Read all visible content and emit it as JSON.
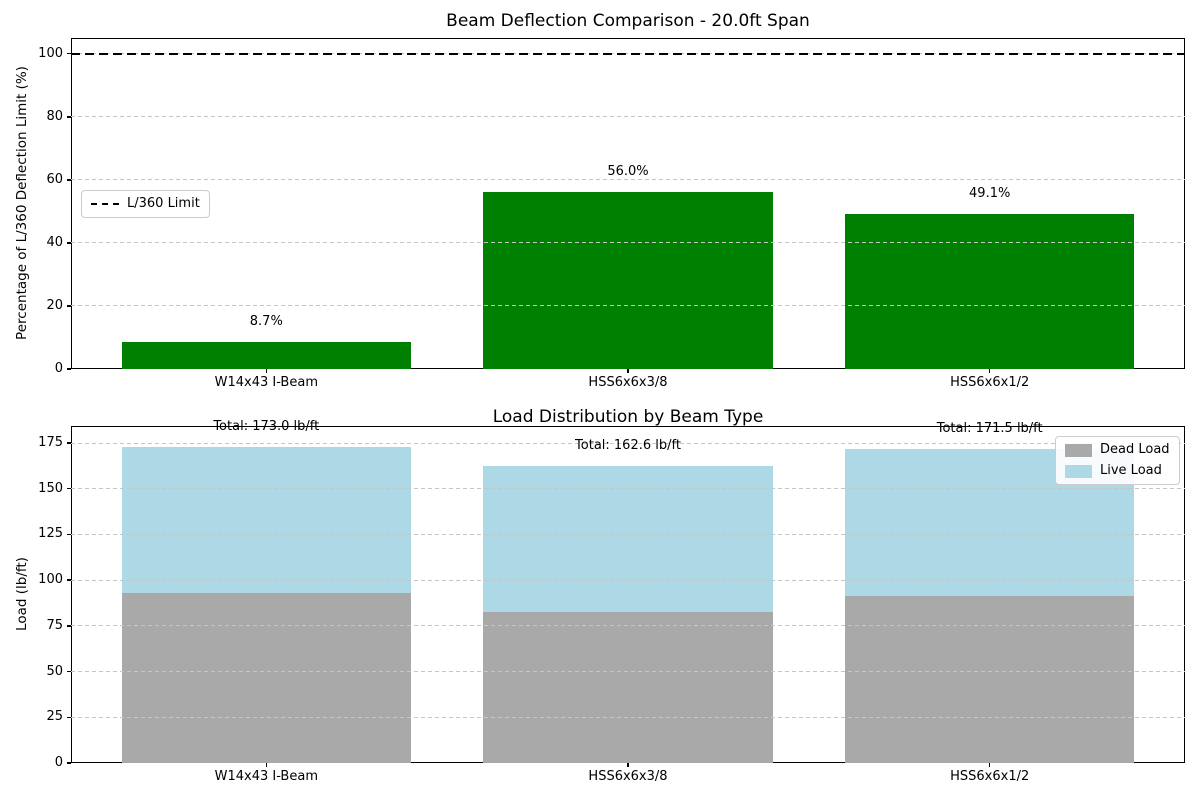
{
  "figure": {
    "background": "#ffffff"
  },
  "chart_data": [
    {
      "type": "bar",
      "title": "Beam Deflection Comparison - 20.0ft Span",
      "ylabel": "Percentage of L/360 Deflection Limit (%)",
      "xlabel": "",
      "categories": [
        "W14x43 I-Beam",
        "HSS6x6x3/8",
        "HSS6x6x1/2"
      ],
      "values": [
        8.7,
        56.0,
        49.1
      ],
      "bar_labels": [
        "8.7%",
        "56.0%",
        "49.1%"
      ],
      "bar_color": "#008000",
      "ylim": [
        0,
        105
      ],
      "yticks": [
        0,
        20,
        40,
        60,
        80,
        100
      ],
      "grid": true,
      "grid_style": "dashed",
      "limit_line": {
        "value": 100,
        "color": "#000000",
        "style": "dashed",
        "label": "L/360 Limit"
      },
      "legend": {
        "position": "center-left",
        "items": [
          {
            "label": "L/360 Limit",
            "swatch": "dashed-line",
            "color": "#000000"
          }
        ]
      }
    },
    {
      "type": "stacked-bar",
      "title": "Load Distribution by Beam Type",
      "ylabel": "Load (lb/ft)",
      "xlabel": "",
      "categories": [
        "W14x43 I-Beam",
        "HSS6x6x3/8",
        "HSS6x6x1/2"
      ],
      "series": [
        {
          "name": "Dead Load",
          "color": "#a9a9a9",
          "values": [
            93.0,
            82.6,
            91.5
          ]
        },
        {
          "name": "Live Load",
          "color": "#add8e6",
          "values": [
            80.0,
            80.0,
            80.0
          ]
        }
      ],
      "totals": [
        173.0,
        162.6,
        171.5
      ],
      "total_labels": [
        "Total: 173.0 lb/ft",
        "Total: 162.6 lb/ft",
        "Total: 171.5 lb/ft"
      ],
      "ylim": [
        0,
        184.3
      ],
      "yticks": [
        0,
        25,
        50,
        75,
        100,
        125,
        150,
        175
      ],
      "grid": true,
      "grid_style": "dashed",
      "legend": {
        "position": "upper-right",
        "items": [
          {
            "label": "Dead Load",
            "swatch": "rect",
            "color": "#a9a9a9"
          },
          {
            "label": "Live Load",
            "swatch": "rect",
            "color": "#add8e6"
          }
        ]
      }
    }
  ]
}
